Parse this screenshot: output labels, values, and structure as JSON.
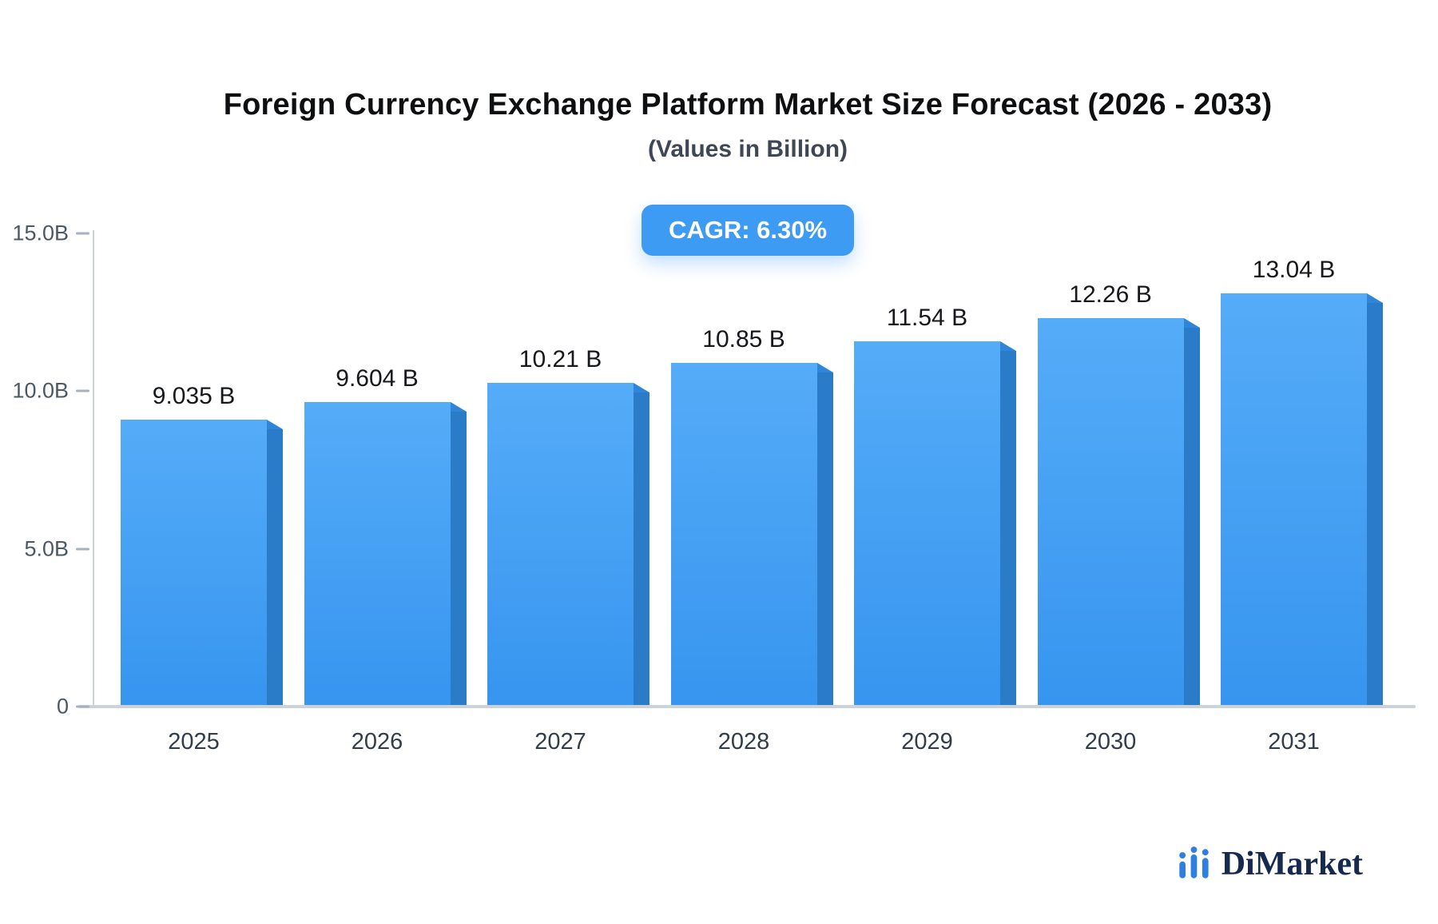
{
  "title": "Foreign Currency Exchange Platform Market Size Forecast (2026 - 2033)",
  "subtitle": "(Values in Billion)",
  "cagr_badge": "CAGR: 6.30%",
  "brand": {
    "name": "DiMarket",
    "icon": "bar-chart-icon"
  },
  "colors": {
    "bar_face_top": "#55ACF8",
    "bar_face_bottom": "#3795EF",
    "bar_side": "#2B7CC8",
    "bar_bevel": "#2F86D8",
    "badge_bg": "#3D9BF3",
    "badge_text": "#FFFFFF",
    "axis_line": "#CBD2D9",
    "value_label": "#16181B",
    "tick_label": "#4D5865",
    "x_label": "#333C49",
    "title_color": "#0E0F11",
    "subtitle_color": "#3F4754",
    "brand_text": "#16294E",
    "brand_icon": "#2E7FE0"
  },
  "chart_data": {
    "type": "bar",
    "categories": [
      "2025",
      "2026",
      "2027",
      "2028",
      "2029",
      "2030",
      "2031"
    ],
    "values": [
      9.035,
      9.604,
      10.21,
      10.85,
      11.54,
      12.26,
      13.04
    ],
    "labels": [
      "9.035 B",
      "9.604 B",
      "10.21 B",
      "10.85 B",
      "11.54 B",
      "12.26 B",
      "13.04 B"
    ],
    "title": "Foreign Currency Exchange Platform Market Size Forecast (2026 - 2033)",
    "subtitle": "(Values in Billion)",
    "annotation": "CAGR: 6.30%",
    "xlabel": "",
    "ylabel": "",
    "ylim": [
      0,
      15
    ],
    "yticks": [
      {
        "value": 0,
        "label": "0"
      },
      {
        "value": 5,
        "label": "5.0B"
      },
      {
        "value": 10,
        "label": "10.0B"
      },
      {
        "value": 15,
        "label": "15.0B"
      }
    ],
    "grid": false,
    "legend": false,
    "bar_style": "3d-extruded-blue"
  }
}
